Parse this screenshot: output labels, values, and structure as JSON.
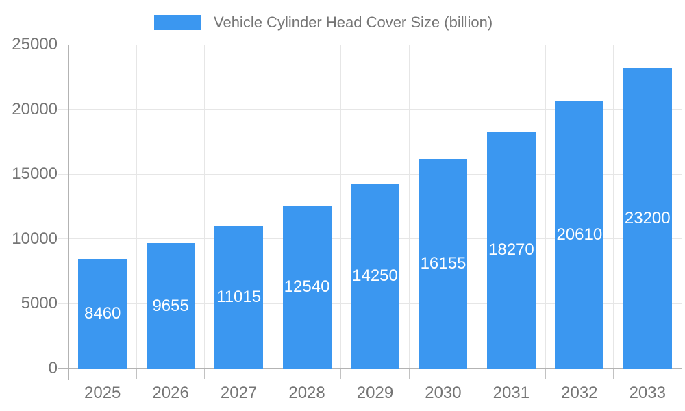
{
  "legend": {
    "label": "Vehicle Cylinder Head Cover Size (billion)"
  },
  "chart_data": {
    "type": "bar",
    "title": "Vehicle Cylinder Head Cover Size (billion)",
    "categories": [
      "2025",
      "2026",
      "2027",
      "2028",
      "2029",
      "2030",
      "2031",
      "2032",
      "2033"
    ],
    "values": [
      8460,
      9655,
      11015,
      12540,
      14250,
      16155,
      18270,
      20610,
      23200
    ],
    "xlabel": "",
    "ylabel": "",
    "ylim": [
      0,
      25000
    ],
    "yticks": [
      0,
      5000,
      10000,
      15000,
      20000,
      25000
    ],
    "grid": true,
    "legend_position": "top",
    "value_labels": "inside-center",
    "colors": {
      "bar": "#3b97f0",
      "value_label": "#ffffff",
      "axis_text": "#757575",
      "axis_line": "#b3b3b3",
      "gridline": "#e6e6e6"
    }
  }
}
